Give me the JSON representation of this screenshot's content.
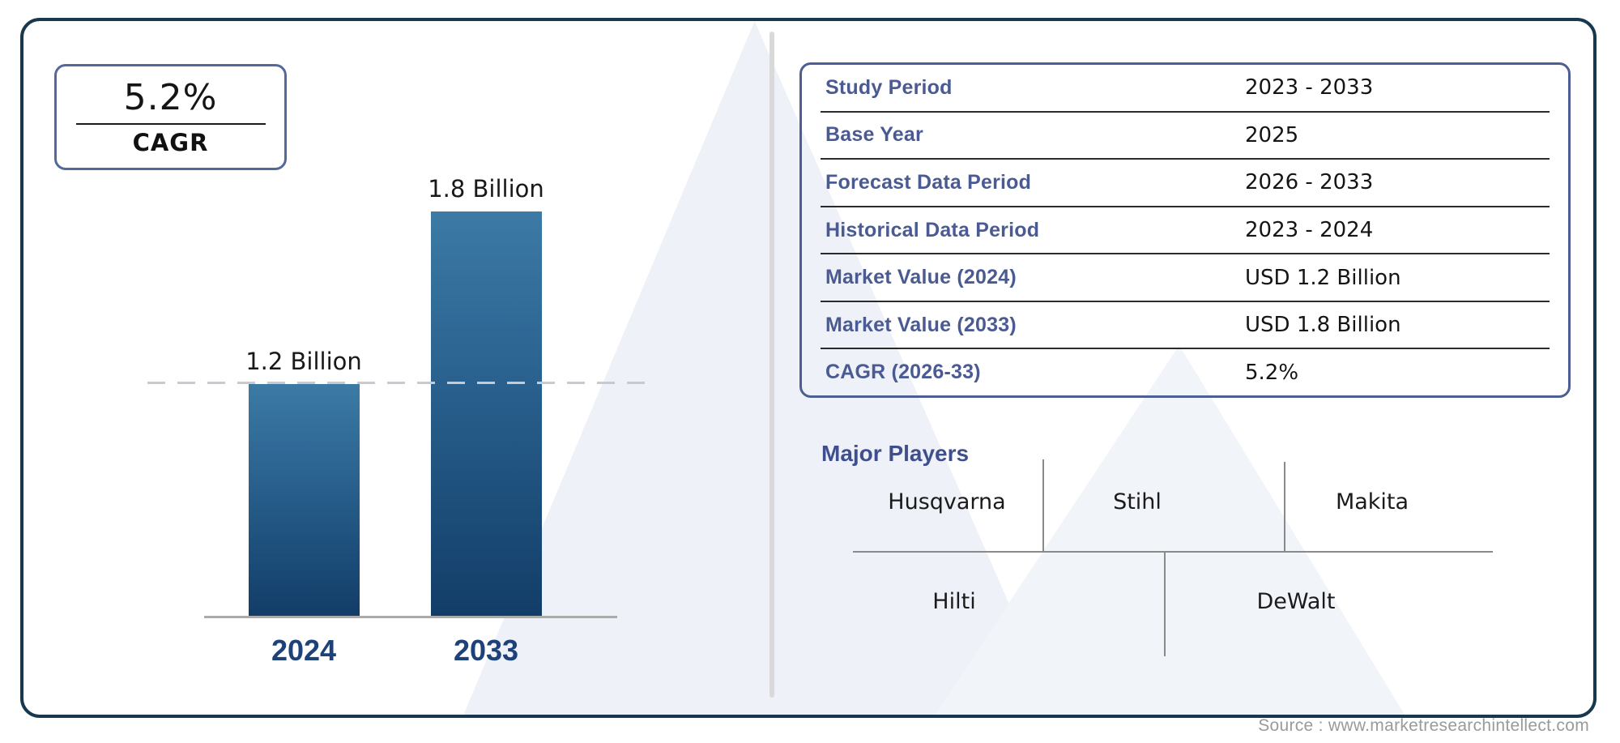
{
  "cagr_badge": {
    "value": "5.2%",
    "label": "CAGR"
  },
  "chart_data": {
    "type": "bar",
    "categories": [
      "2024",
      "2033"
    ],
    "values": [
      1.2,
      1.8
    ],
    "unit": "USD Billion",
    "bar_labels": [
      "1.2 Billion",
      "1.8 Billion"
    ],
    "reference_line_value": 1.2,
    "title": "",
    "xlabel": "",
    "ylabel": "",
    "ylim": [
      0,
      2.0
    ],
    "grid": false,
    "legend": false,
    "bar_color_top": "#3d7aa6",
    "bar_color_bottom": "#123d68"
  },
  "info_table": {
    "rows": [
      {
        "label": "Study Period",
        "value": "2023 - 2033"
      },
      {
        "label": "Base Year",
        "value": "2025"
      },
      {
        "label": "Forecast Data Period",
        "value": "2026 - 2033"
      },
      {
        "label": "Historical Data Period",
        "value": "2023 - 2024"
      },
      {
        "label": "Market Value (2024)",
        "value": "USD 1.2 Billion"
      },
      {
        "label": "Market Value (2033)",
        "value": "USD 1.8 Billion"
      },
      {
        "label": "CAGR (2026-33)",
        "value": "5.2%"
      }
    ]
  },
  "major_players": {
    "heading": "Major Players",
    "top_row": [
      "Husqvarna",
      "Stihl",
      "Makita"
    ],
    "bottom_row": [
      "Hilti",
      "DeWalt"
    ]
  },
  "source": {
    "text": "Source : www.marketresearchintellect.com"
  },
  "colors": {
    "card_border": "#17384e",
    "accent_slate_blue": "#4a5a92",
    "year_label_blue": "#1d4179",
    "divider_gray": "#d9d9d9",
    "watermark": "#eef1f7"
  }
}
